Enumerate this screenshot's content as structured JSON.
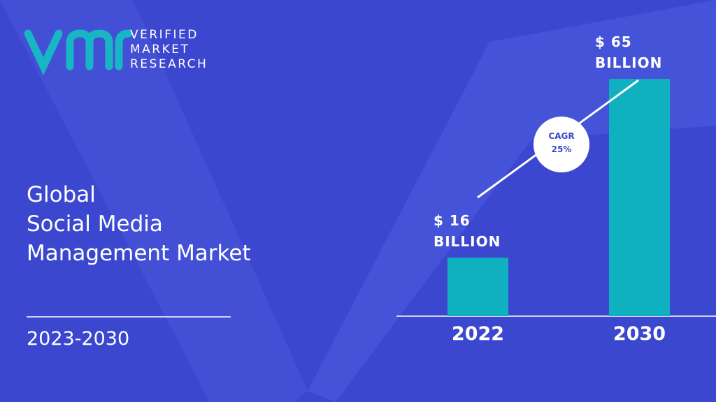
{
  "logo": {
    "lines": [
      "VERIFIED",
      "MARKET",
      "RESEARCH"
    ]
  },
  "chart_data": {
    "type": "bar",
    "title": "Global\nSocial Media\nManagement Market",
    "subtitle": "2023-2030",
    "categories": [
      "2022",
      "2030"
    ],
    "values": [
      16,
      65
    ],
    "value_labels": [
      "$ 16\nBILLION",
      "$ 65\nBILLION"
    ],
    "color": "#0fb0bf",
    "annotations": [
      "CAGR",
      "25%"
    ]
  }
}
